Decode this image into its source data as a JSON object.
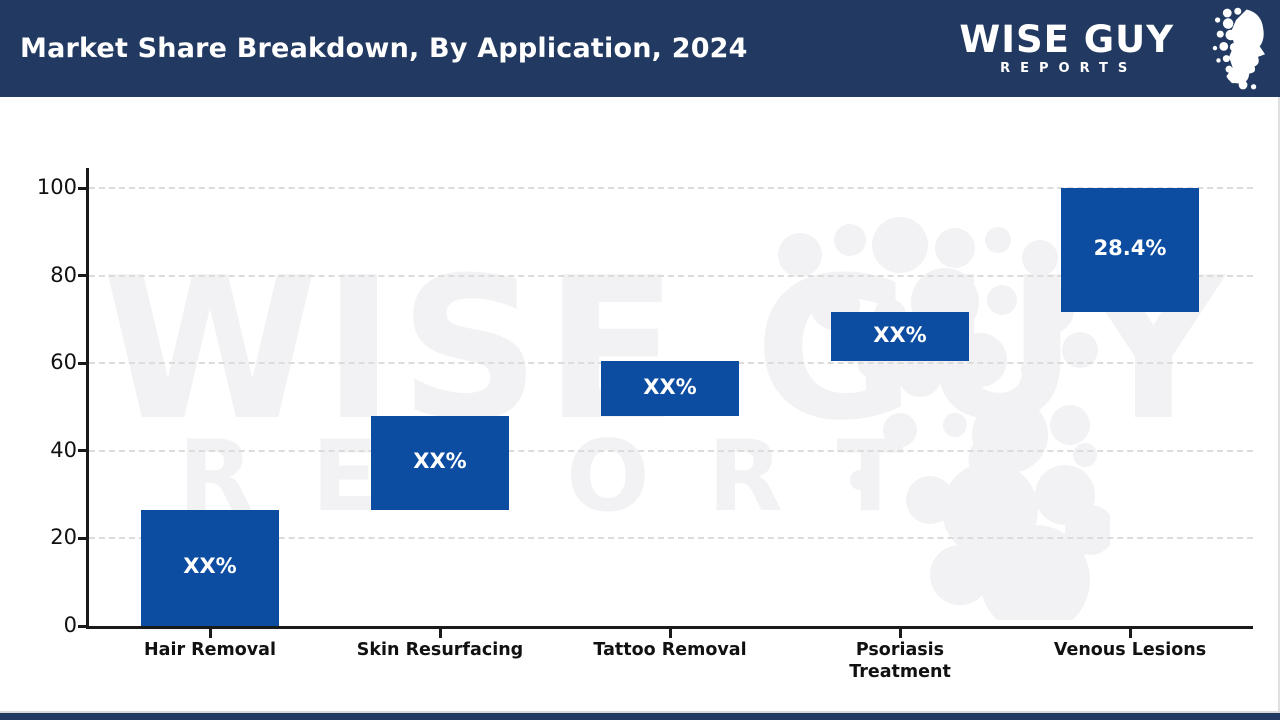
{
  "header": {
    "title": "Market Share Breakdown, By Application, 2024",
    "logo": {
      "line1": "WISE GUY",
      "line2": "REPORTS"
    }
  },
  "watermark": {
    "line1": "WISE GUY",
    "line2": "REPORTS"
  },
  "chart_data": {
    "type": "bar",
    "subtype": "waterfall",
    "title": "Market Share Breakdown, By Application, 2024",
    "categories": [
      "Hair Removal",
      "Skin Resurfacing",
      "Tattoo Removal",
      "Psoriasis Treatment",
      "Venous Lesions"
    ],
    "category_lines": [
      [
        "Hair Removal"
      ],
      [
        "Skin Resurfacing"
      ],
      [
        "Tattoo Removal"
      ],
      [
        "Psoriasis",
        "Treatment"
      ],
      [
        "Venous Lesions"
      ]
    ],
    "bars": [
      {
        "category": "Hair Removal",
        "start": 0,
        "end": 26.5,
        "label": "XX%"
      },
      {
        "category": "Skin Resurfacing",
        "start": 26.5,
        "end": 48.0,
        "label": "XX%"
      },
      {
        "category": "Tattoo Removal",
        "start": 48.0,
        "end": 60.4,
        "label": "XX%"
      },
      {
        "category": "Psoriasis Treatment",
        "start": 60.4,
        "end": 71.6,
        "label": "XX%"
      },
      {
        "category": "Venous Lesions",
        "start": 71.6,
        "end": 100,
        "label": "28.4%",
        "value_shown": 28.4
      }
    ],
    "yticks": [
      0,
      20,
      40,
      60,
      80,
      100
    ],
    "ylim": [
      0,
      100
    ],
    "xlabel": "",
    "ylabel": "",
    "grid": "horizontal-dashed",
    "legend": "none",
    "bar_color": "#0C4DA2",
    "bar_label_color": "#FFFFFF"
  },
  "colors": {
    "header_bg": "#223A62",
    "footer_bg": "#223A62",
    "bar": "#0C4DA2",
    "gridline": "#DCDCDC",
    "axis": "#1A1A1A",
    "watermark": "#F2F2F4"
  }
}
